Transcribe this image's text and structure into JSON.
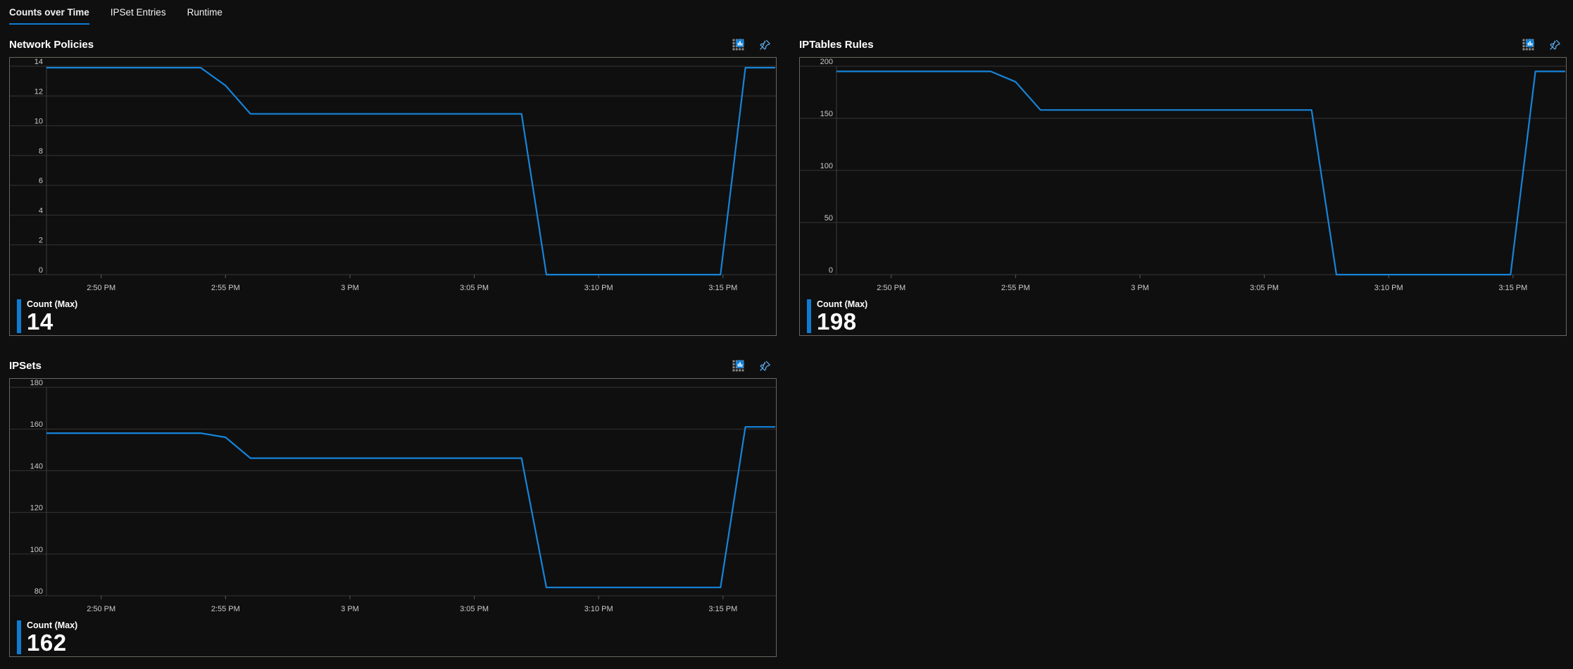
{
  "tabs": [
    {
      "label": "Counts over Time",
      "active": true
    },
    {
      "label": "IPSet Entries",
      "active": false
    },
    {
      "label": "Runtime",
      "active": false
    }
  ],
  "icons": {
    "metrics_explorer": "metrics-explorer-icon",
    "pin": "pin-to-dashboard-icon"
  },
  "colors": {
    "background": "#0f0f0f",
    "accent": "#0f7cd4",
    "line": "#1684da",
    "grid": "#343434",
    "card_border": "#696763",
    "axis_text": "#cbcbcb",
    "icon_blue": "#1080d8",
    "pin_blue": "#5ba7e6"
  },
  "chart_data": [
    {
      "type": "line",
      "title": "Network Policies",
      "series": [
        {
          "name": "Count (Max)",
          "aggregation": "Max",
          "max_label": "14"
        }
      ],
      "x_unit": "minutes after 2:00 PM",
      "x": [
        47.8,
        54.0,
        55.0,
        56.0,
        66.9,
        67.9,
        74.9,
        75.9,
        77.1
      ],
      "y": [
        13.9,
        13.9,
        12.7,
        10.8,
        10.8,
        0,
        0,
        13.9,
        13.9
      ],
      "xlim": [
        47.8,
        77.1
      ],
      "ylim": [
        0,
        14
      ],
      "yticks": [
        0,
        2,
        4,
        6,
        8,
        10,
        12,
        14
      ],
      "xticks": [
        {
          "v": 50,
          "label": "2:50 PM"
        },
        {
          "v": 55,
          "label": "2:55 PM"
        },
        {
          "v": 60,
          "label": "3 PM"
        },
        {
          "v": 65,
          "label": "3:05 PM"
        },
        {
          "v": 70,
          "label": "3:10 PM"
        },
        {
          "v": 75,
          "label": "3:15 PM"
        }
      ],
      "grid": "horizontal",
      "legend_position": "bottom-left"
    },
    {
      "type": "line",
      "title": "IPTables Rules",
      "series": [
        {
          "name": "Count (Max)",
          "aggregation": "Max",
          "max_label": "198"
        }
      ],
      "x_unit": "minutes after 2:00 PM",
      "x": [
        47.8,
        54.0,
        55.0,
        56.0,
        66.9,
        67.9,
        74.9,
        75.9,
        77.1
      ],
      "y": [
        195,
        195,
        185,
        158,
        158,
        0,
        0,
        195,
        195
      ],
      "xlim": [
        47.8,
        77.1
      ],
      "ylim": [
        0,
        200
      ],
      "yticks": [
        0,
        50,
        100,
        150,
        200
      ],
      "xticks": [
        {
          "v": 50,
          "label": "2:50 PM"
        },
        {
          "v": 55,
          "label": "2:55 PM"
        },
        {
          "v": 60,
          "label": "3 PM"
        },
        {
          "v": 65,
          "label": "3:05 PM"
        },
        {
          "v": 70,
          "label": "3:10 PM"
        },
        {
          "v": 75,
          "label": "3:15 PM"
        }
      ],
      "grid": "horizontal",
      "legend_position": "bottom-left"
    },
    {
      "type": "line",
      "title": "IPSets",
      "series": [
        {
          "name": "Count (Max)",
          "aggregation": "Max",
          "max_label": "162"
        }
      ],
      "x_unit": "minutes after 2:00 PM",
      "x": [
        47.8,
        54.0,
        55.0,
        56.0,
        66.9,
        67.9,
        74.9,
        75.9,
        77.1
      ],
      "y": [
        158,
        158,
        156,
        146,
        146,
        84,
        84,
        161,
        161
      ],
      "xlim": [
        47.8,
        77.1
      ],
      "ylim": [
        80,
        180
      ],
      "yticks": [
        80,
        100,
        120,
        140,
        160,
        180
      ],
      "xticks": [
        {
          "v": 50,
          "label": "2:50 PM"
        },
        {
          "v": 55,
          "label": "2:55 PM"
        },
        {
          "v": 60,
          "label": "3 PM"
        },
        {
          "v": 65,
          "label": "3:05 PM"
        },
        {
          "v": 70,
          "label": "3:10 PM"
        },
        {
          "v": 75,
          "label": "3:15 PM"
        }
      ],
      "grid": "horizontal",
      "legend_position": "bottom-left"
    }
  ]
}
